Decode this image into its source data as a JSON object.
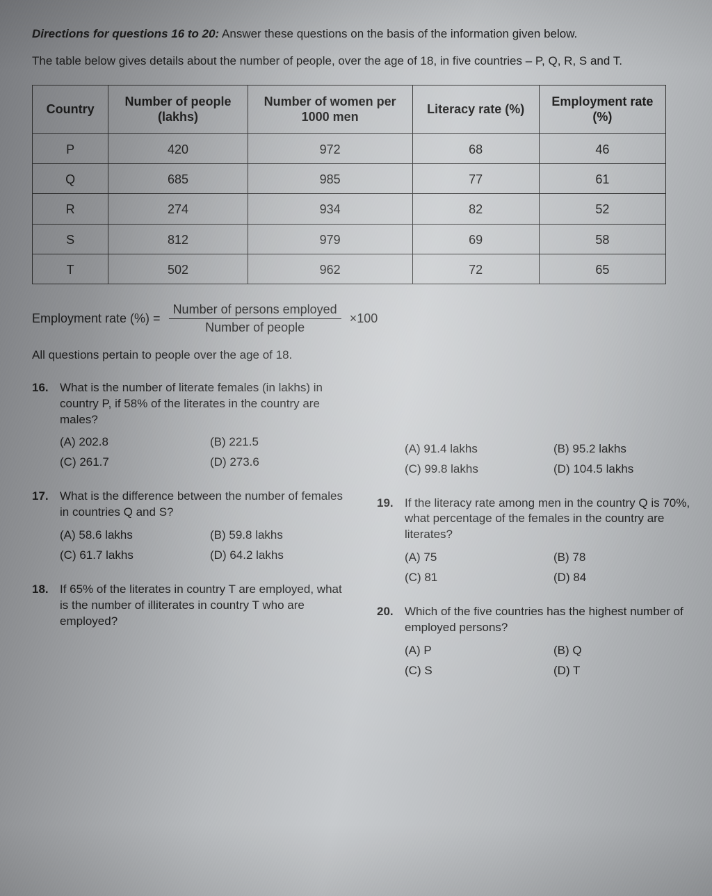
{
  "directions": {
    "lead": "Directions for questions 16 to 20:",
    "rest": " Answer these questions on the basis of the information given below."
  },
  "subheading": "The table below gives details about the number of people, over the age of 18, in five countries – P, Q, R, S and T.",
  "table": {
    "headers": [
      "Country",
      "Number of people\n(lakhs)",
      "Number of women per\n1000 men",
      "Literacy rate (%)",
      "Employment rate (%)"
    ],
    "col_widths": [
      "12%",
      "22%",
      "26%",
      "20%",
      "20%"
    ],
    "rows": [
      [
        "P",
        "420",
        "972",
        "68",
        "46"
      ],
      [
        "Q",
        "685",
        "985",
        "77",
        "61"
      ],
      [
        "R",
        "274",
        "934",
        "82",
        "52"
      ],
      [
        "S",
        "812",
        "979",
        "69",
        "58"
      ],
      [
        "T",
        "502",
        "962",
        "72",
        "65"
      ]
    ]
  },
  "formula": {
    "lhs": "Employment rate (%) =",
    "numerator": "Number of persons employed",
    "denominator": "Number of people",
    "tail": "×100"
  },
  "note": "All questions pertain to people over the age of 18.",
  "q16": {
    "num": "16.",
    "text": "What is the number of literate females (in lakhs) in country P, if 58% of the literates in the country are males?",
    "opts": {
      "A": "(A) 202.8",
      "B": "(B) 221.5",
      "C": "(C) 261.7",
      "D": "(D) 273.6"
    }
  },
  "q17": {
    "num": "17.",
    "text": "What is the difference between the number of females in countries Q and S?",
    "opts": {
      "A": "(A) 58.6 lakhs",
      "B": "(B) 59.8 lakhs",
      "C": "(C) 61.7 lakhs",
      "D": "(D) 64.2 lakhs"
    }
  },
  "q18": {
    "num": "18.",
    "text": "If 65% of the literates in country T are employed, what is the number of illiterates in country T who are employed?",
    "opts": {
      "A": "(A) 91.4 lakhs",
      "B": "(B) 95.2 lakhs",
      "C": "(C) 99.8 lakhs",
      "D": "(D) 104.5 lakhs"
    }
  },
  "q19": {
    "num": "19.",
    "text": "If the literacy rate among men in the country Q is 70%, what percentage of the females in the country are literates?",
    "opts": {
      "A": "(A) 75",
      "B": "(B) 78",
      "C": "(C) 81",
      "D": "(D) 84"
    }
  },
  "q20": {
    "num": "20.",
    "text": "Which of the five countries has the highest number of employed persons?",
    "opts": {
      "A": "(A) P",
      "B": "(B) Q",
      "C": "(C) S",
      "D": "(D) T"
    }
  }
}
